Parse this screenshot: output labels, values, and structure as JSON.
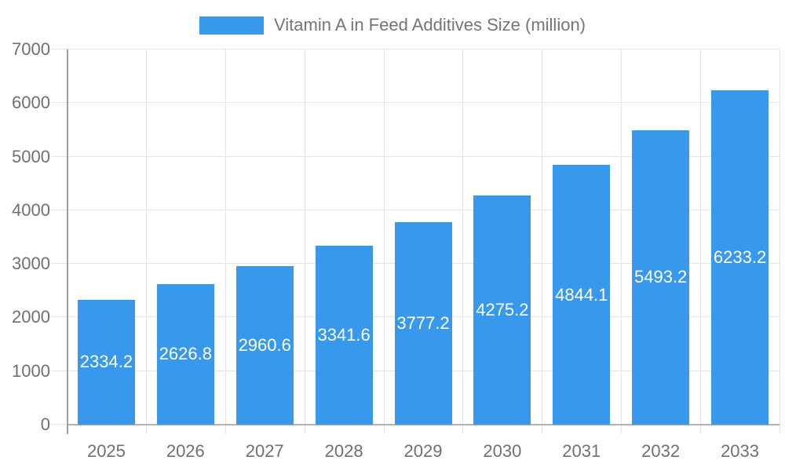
{
  "legend": {
    "label": "Vitamin A in Feed Additives Size (million)"
  },
  "colors": {
    "bar": "#3898EC",
    "value_label": "#FFFFFF",
    "grid": "#E4E4E4",
    "axis_y": "#9E9E9E",
    "axis_x": "#B3B3B3",
    "tick_text": "#707070",
    "title_text": "#757575"
  },
  "chart_data": {
    "type": "bar",
    "title": "Vitamin A in Feed Additives Size (million)",
    "categories": [
      "2025",
      "2026",
      "2027",
      "2028",
      "2029",
      "2030",
      "2031",
      "2032",
      "2033"
    ],
    "series": [
      {
        "name": "Vitamin A in Feed Additives Size (million)",
        "values": [
          2334.2,
          2626.8,
          2960.6,
          3341.6,
          3777.2,
          4275.2,
          4844.1,
          5493.2,
          6233.2
        ]
      }
    ],
    "value_label_decimals": 1,
    "value_label_position": "inside-center",
    "xlabel": "",
    "ylabel": "",
    "ylim": [
      0,
      7000
    ],
    "ytick_step": 1000,
    "yticks": [
      0,
      1000,
      2000,
      3000,
      4000,
      5000,
      6000,
      7000
    ],
    "grid": true,
    "legend_position": "top-center"
  }
}
